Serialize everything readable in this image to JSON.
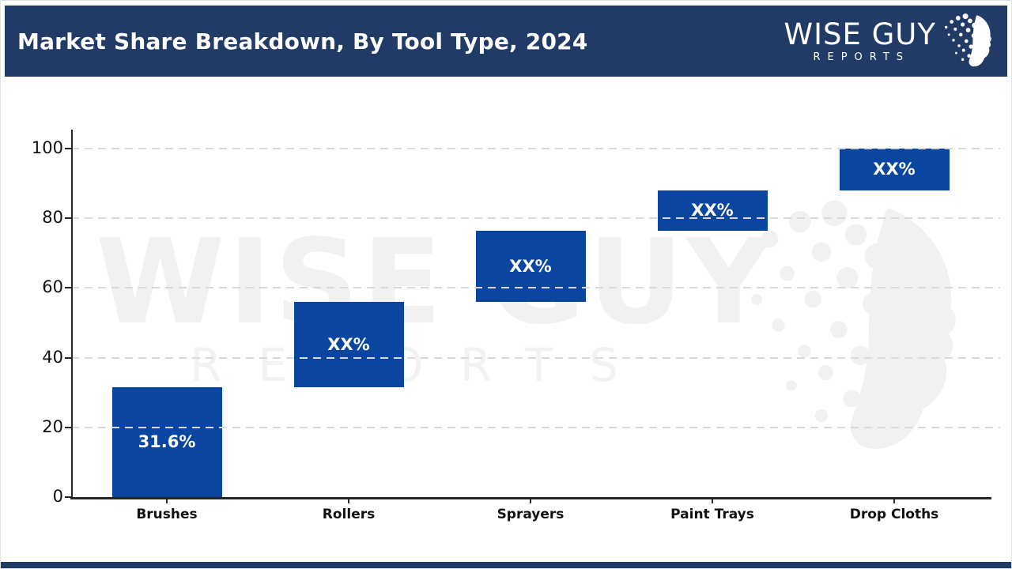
{
  "header": {
    "title": "Market Share Breakdown, By Tool Type, 2024",
    "logo": {
      "line1": "WISE GUY",
      "line2": "REPORTS",
      "face_icon": "dotted-head-profile"
    }
  },
  "watermark": {
    "line1": "WISE GUY",
    "line2": "REPORTS",
    "face_icon": "dotted-head-profile"
  },
  "colors": {
    "navy": "#223A66",
    "bar_blue": "#0A46A0",
    "axis": "#262626",
    "gridline": "#D9D9D9",
    "watermark": "#F1F1F1",
    "bar_label": "#FFFFFF"
  },
  "chart_data": {
    "type": "bar",
    "subtype": "waterfall",
    "title": "Market Share Breakdown, By Tool Type, 2024",
    "xlabel": "",
    "ylabel": "",
    "categories": [
      "Brushes",
      "Rollers",
      "Sprayers",
      "Paint Trays",
      "Drop Cloths"
    ],
    "segments": [
      {
        "category": "Brushes",
        "start": 0,
        "end": 31.6,
        "label": "31.6%"
      },
      {
        "category": "Rollers",
        "start": 31.6,
        "end": 56.0,
        "label": "XX%"
      },
      {
        "category": "Sprayers",
        "start": 56.0,
        "end": 76.5,
        "label": "XX%"
      },
      {
        "category": "Paint Trays",
        "start": 76.5,
        "end": 88.0,
        "label": "XX%"
      },
      {
        "category": "Drop Cloths",
        "start": 88.0,
        "end": 100.0,
        "label": "XX%"
      }
    ],
    "yticks": [
      0,
      20,
      40,
      60,
      80,
      100
    ],
    "ylim": [
      0,
      105.5
    ],
    "grid": "dashed horizontal",
    "legend": "none"
  }
}
